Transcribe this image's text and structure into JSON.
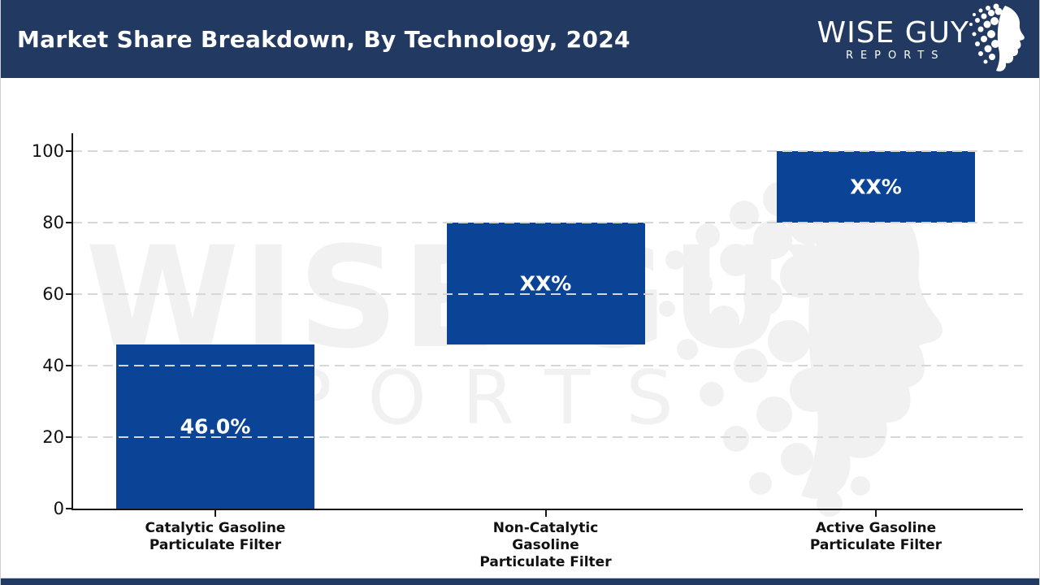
{
  "header": {
    "title": "Market Share Breakdown, By Technology, 2024",
    "logo": {
      "brand": "WISE GUY",
      "brand_sub": "REPORTS"
    }
  },
  "watermark": {
    "line1": "WISE GUY",
    "line2": "REPORTS"
  },
  "chart_data": {
    "type": "bar",
    "subtype": "waterfall",
    "title": "Market Share Breakdown, By Technology, 2024",
    "unit": "%",
    "ylim": [
      0,
      100
    ],
    "yticks": [
      0,
      20,
      40,
      60,
      80,
      100
    ],
    "grid": "horizontal-dashed",
    "legend": "none",
    "categories": [
      "Catalytic Gasoline\nParticulate Filter",
      "Non-Catalytic\nGasoline\nParticulate Filter",
      "Active Gasoline\nParticulate Filter"
    ],
    "bars": [
      {
        "category": "Catalytic Gasoline\nParticulate Filter",
        "start": 0,
        "end": 46,
        "label": "46.0%"
      },
      {
        "category": "Non-Catalytic\nGasoline\nParticulate Filter",
        "start": 46,
        "end": 80,
        "label": "XX%"
      },
      {
        "category": "Active Gasoline\nParticulate Filter",
        "start": 80,
        "end": 100,
        "label": "XX%"
      }
    ]
  },
  "colors": {
    "header_bg": "#223a62",
    "footer_bg": "#223a62",
    "bar": "#0b4397",
    "watermark": "#f1f1f1",
    "gridline": "#d7d7d7",
    "axis": "#151515"
  }
}
